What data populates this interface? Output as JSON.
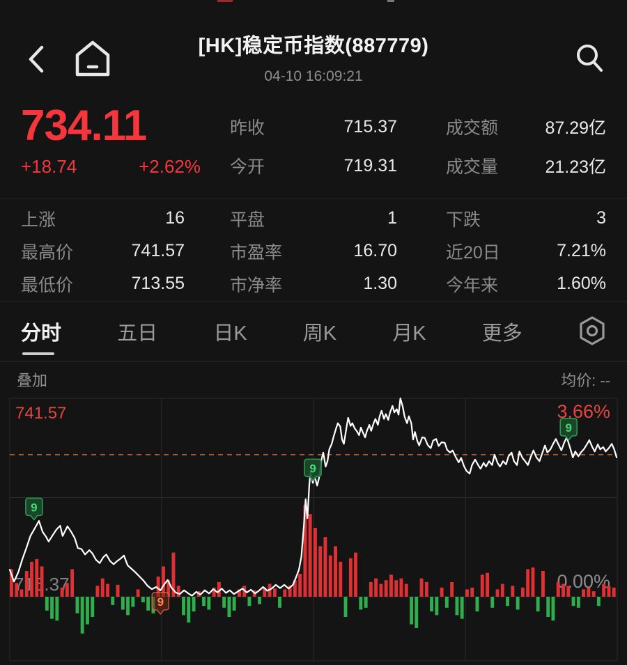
{
  "header": {
    "title": "[HK]稳定币指数(887779)",
    "timestamp": "04-10 16:09:21"
  },
  "quote": {
    "price": "734.11",
    "change": "+18.74",
    "change_pct": "+2.62%"
  },
  "summary": [
    {
      "label": "昨收",
      "value": "715.37"
    },
    {
      "label": "成交额",
      "value": "87.29亿"
    },
    {
      "label": "今开",
      "value": "719.31"
    },
    {
      "label": "成交量",
      "value": "21.23亿"
    }
  ],
  "stats": [
    {
      "label": "上涨",
      "value": "16"
    },
    {
      "label": "平盘",
      "value": "1"
    },
    {
      "label": "下跌",
      "value": "3"
    },
    {
      "label": "最高价",
      "value": "741.57"
    },
    {
      "label": "市盈率",
      "value": "16.70"
    },
    {
      "label": "近20日",
      "value": "7.21%"
    },
    {
      "label": "最低价",
      "value": "713.55"
    },
    {
      "label": "市净率",
      "value": "1.30"
    },
    {
      "label": "今年来",
      "value": "1.60%"
    }
  ],
  "tabs": [
    "分时",
    "五日",
    "日K",
    "周K",
    "月K",
    "更多"
  ],
  "overlay": {
    "overlay_label": "叠加",
    "avg_label": "均价: --"
  },
  "colors": {
    "up_red": "#f5363c",
    "bar_red": "#df3134",
    "bar_green": "#2fae4e",
    "dashed_line": "#b56b3c",
    "grid": "#2a2a2a",
    "line": "#ffffff"
  },
  "chart_data": {
    "type": "line",
    "title": "分时 (intraday) price line with up/down volume bars",
    "labels": {
      "price_high": "741.57",
      "price_low": "715.37",
      "pct_high": "3.66%",
      "pct_low": "0.00%"
    },
    "y_axis": {
      "price_high": 741.57,
      "price_low": 715.37,
      "prev_close": 715.37,
      "pct_high": 3.66,
      "pct_low": 0.0
    },
    "last_price": 734.11,
    "last_pct": 2.62,
    "line_pct": [
      [
        0.0,
        0.5
      ],
      [
        0.007,
        0.28
      ],
      [
        0.014,
        0.45
      ],
      [
        0.021,
        0.7
      ],
      [
        0.028,
        0.92
      ],
      [
        0.034,
        1.12
      ],
      [
        0.041,
        1.26
      ],
      [
        0.048,
        1.4
      ],
      [
        0.054,
        1.2
      ],
      [
        0.06,
        1.1
      ],
      [
        0.064,
        1.02
      ],
      [
        0.071,
        1.14
      ],
      [
        0.077,
        1.24
      ],
      [
        0.083,
        1.31
      ],
      [
        0.087,
        1.12
      ],
      [
        0.095,
        1.3
      ],
      [
        0.101,
        1.2
      ],
      [
        0.107,
        1.08
      ],
      [
        0.112,
        0.9
      ],
      [
        0.118,
        0.88
      ],
      [
        0.124,
        0.78
      ],
      [
        0.131,
        0.86
      ],
      [
        0.136,
        0.8
      ],
      [
        0.142,
        0.68
      ],
      [
        0.148,
        0.62
      ],
      [
        0.154,
        0.73
      ],
      [
        0.159,
        0.78
      ],
      [
        0.165,
        0.66
      ],
      [
        0.171,
        0.6
      ],
      [
        0.177,
        0.66
      ],
      [
        0.182,
        0.7
      ],
      [
        0.188,
        0.76
      ],
      [
        0.194,
        0.58
      ],
      [
        0.2,
        0.52
      ],
      [
        0.206,
        0.46
      ],
      [
        0.213,
        0.38
      ],
      [
        0.22,
        0.3
      ],
      [
        0.227,
        0.2
      ],
      [
        0.234,
        0.14
      ],
      [
        0.241,
        0.18
      ],
      [
        0.248,
        0.12
      ],
      [
        0.255,
        0.24
      ],
      [
        0.26,
        0.31
      ],
      [
        0.266,
        0.17
      ],
      [
        0.273,
        0.08
      ],
      [
        0.28,
        0.05
      ],
      [
        0.287,
        0.12
      ],
      [
        0.294,
        0.06
      ],
      [
        0.3,
        0.02
      ],
      [
        0.307,
        0.09
      ],
      [
        0.314,
        0.04
      ],
      [
        0.321,
        0.12
      ],
      [
        0.328,
        0.06
      ],
      [
        0.335,
        0.14
      ],
      [
        0.342,
        0.08
      ],
      [
        0.349,
        0.15
      ],
      [
        0.356,
        0.07
      ],
      [
        0.362,
        0.12
      ],
      [
        0.369,
        0.05
      ],
      [
        0.376,
        0.1
      ],
      [
        0.383,
        0.15
      ],
      [
        0.39,
        0.08
      ],
      [
        0.397,
        0.13
      ],
      [
        0.404,
        0.06
      ],
      [
        0.411,
        0.12
      ],
      [
        0.417,
        0.18
      ],
      [
        0.424,
        0.11
      ],
      [
        0.431,
        0.15
      ],
      [
        0.438,
        0.22
      ],
      [
        0.445,
        0.16
      ],
      [
        0.452,
        0.22
      ],
      [
        0.459,
        0.15
      ],
      [
        0.466,
        0.22
      ],
      [
        0.471,
        0.35
      ],
      [
        0.476,
        0.5
      ],
      [
        0.48,
        0.74
      ],
      [
        0.484,
        1.28
      ],
      [
        0.487,
        1.8
      ],
      [
        0.49,
        1.45
      ],
      [
        0.493,
        2.05
      ],
      [
        0.495,
        2.3
      ],
      [
        0.499,
        2.1
      ],
      [
        0.502,
        2.22
      ],
      [
        0.506,
        2.05
      ],
      [
        0.509,
        2.18
      ],
      [
        0.513,
        2.52
      ],
      [
        0.516,
        2.66
      ],
      [
        0.52,
        2.4
      ],
      [
        0.523,
        2.5
      ],
      [
        0.526,
        2.72
      ],
      [
        0.53,
        2.82
      ],
      [
        0.533,
        2.95
      ],
      [
        0.537,
        3.1
      ],
      [
        0.54,
        3.2
      ],
      [
        0.544,
        3.14
      ],
      [
        0.547,
        2.9
      ],
      [
        0.55,
        2.82
      ],
      [
        0.554,
        3.1
      ],
      [
        0.557,
        3.3
      ],
      [
        0.561,
        3.15
      ],
      [
        0.564,
        3.2
      ],
      [
        0.568,
        3.1
      ],
      [
        0.571,
        3.06
      ],
      [
        0.575,
        2.98
      ],
      [
        0.578,
        3.12
      ],
      [
        0.581,
        3.04
      ],
      [
        0.585,
        2.94
      ],
      [
        0.588,
        3.06
      ],
      [
        0.592,
        3.17
      ],
      [
        0.595,
        3.06
      ],
      [
        0.599,
        3.2
      ],
      [
        0.602,
        3.28
      ],
      [
        0.606,
        3.17
      ],
      [
        0.609,
        3.33
      ],
      [
        0.612,
        3.43
      ],
      [
        0.616,
        3.28
      ],
      [
        0.619,
        3.37
      ],
      [
        0.623,
        3.26
      ],
      [
        0.626,
        3.4
      ],
      [
        0.63,
        3.52
      ],
      [
        0.633,
        3.4
      ],
      [
        0.637,
        3.46
      ],
      [
        0.64,
        3.36
      ],
      [
        0.643,
        3.66
      ],
      [
        0.647,
        3.5
      ],
      [
        0.65,
        3.32
      ],
      [
        0.654,
        3.2
      ],
      [
        0.657,
        3.33
      ],
      [
        0.661,
        3.2
      ],
      [
        0.664,
        2.9
      ],
      [
        0.667,
        3.04
      ],
      [
        0.671,
        2.87
      ],
      [
        0.674,
        2.79
      ],
      [
        0.679,
        2.94
      ],
      [
        0.683,
        2.93
      ],
      [
        0.688,
        2.8
      ],
      [
        0.693,
        2.74
      ],
      [
        0.697,
        2.88
      ],
      [
        0.702,
        2.91
      ],
      [
        0.706,
        2.78
      ],
      [
        0.711,
        2.85
      ],
      [
        0.716,
        2.84
      ],
      [
        0.72,
        2.71
      ],
      [
        0.725,
        2.66
      ],
      [
        0.729,
        2.7
      ],
      [
        0.734,
        2.58
      ],
      [
        0.739,
        2.48
      ],
      [
        0.743,
        2.56
      ],
      [
        0.748,
        2.4
      ],
      [
        0.752,
        2.32
      ],
      [
        0.757,
        2.27
      ],
      [
        0.761,
        2.43
      ],
      [
        0.766,
        2.53
      ],
      [
        0.771,
        2.43
      ],
      [
        0.775,
        2.36
      ],
      [
        0.78,
        2.47
      ],
      [
        0.784,
        2.4
      ],
      [
        0.789,
        2.5
      ],
      [
        0.794,
        2.43
      ],
      [
        0.798,
        2.62
      ],
      [
        0.803,
        2.47
      ],
      [
        0.807,
        2.4
      ],
      [
        0.812,
        2.5
      ],
      [
        0.817,
        2.44
      ],
      [
        0.821,
        2.59
      ],
      [
        0.826,
        2.66
      ],
      [
        0.83,
        2.5
      ],
      [
        0.835,
        2.43
      ],
      [
        0.839,
        2.68
      ],
      [
        0.844,
        2.56
      ],
      [
        0.849,
        2.49
      ],
      [
        0.853,
        2.43
      ],
      [
        0.858,
        2.59
      ],
      [
        0.862,
        2.7
      ],
      [
        0.867,
        2.57
      ],
      [
        0.872,
        2.5
      ],
      [
        0.876,
        2.63
      ],
      [
        0.881,
        2.79
      ],
      [
        0.885,
        2.66
      ],
      [
        0.89,
        2.72
      ],
      [
        0.894,
        2.81
      ],
      [
        0.899,
        2.91
      ],
      [
        0.904,
        2.79
      ],
      [
        0.908,
        2.7
      ],
      [
        0.913,
        2.85
      ],
      [
        0.917,
        2.94
      ],
      [
        0.922,
        2.76
      ],
      [
        0.927,
        2.57
      ],
      [
        0.931,
        2.68
      ],
      [
        0.936,
        2.59
      ],
      [
        0.94,
        2.66
      ],
      [
        0.945,
        2.72
      ],
      [
        0.95,
        2.81
      ],
      [
        0.954,
        2.89
      ],
      [
        0.959,
        2.76
      ],
      [
        0.963,
        2.68
      ],
      [
        0.968,
        2.81
      ],
      [
        0.972,
        2.72
      ],
      [
        0.977,
        2.76
      ],
      [
        0.981,
        2.68
      ],
      [
        0.986,
        2.74
      ],
      [
        0.991,
        2.82
      ],
      [
        0.995,
        2.72
      ],
      [
        0.999,
        2.57
      ]
    ],
    "volume_bars": [
      30,
      15,
      8,
      28,
      38,
      41,
      33,
      -15,
      -24,
      -26,
      10,
      15,
      30,
      -18,
      -40,
      -30,
      -22,
      12,
      20,
      14,
      -9,
      13,
      -14,
      -20,
      -11,
      8,
      -6,
      -15,
      -18,
      22,
      33,
      18,
      48,
      12,
      -20,
      -28,
      -16,
      6,
      -10,
      -14,
      10,
      16,
      -12,
      -22,
      -15,
      8,
      12,
      -10,
      7,
      -8,
      10,
      14,
      9,
      -12,
      8,
      12,
      18,
      25,
      100,
      90,
      75,
      55,
      65,
      45,
      55,
      38,
      -22,
      42,
      48,
      -14,
      -12,
      16,
      20,
      14,
      18,
      24,
      18,
      20,
      14,
      -30,
      -34,
      20,
      16,
      -16,
      -20,
      10,
      -12,
      16,
      -20,
      -24,
      8,
      10,
      -16,
      24,
      26,
      -12,
      8,
      14,
      -10,
      12,
      -14,
      10,
      30,
      32,
      -16,
      28,
      -22,
      -26,
      16,
      14,
      12,
      -10,
      -12,
      8,
      10,
      6,
      -10,
      14,
      12,
      10
    ],
    "markers": [
      {
        "f": 0.04,
        "pct": 1.42,
        "style": "green",
        "label": "9"
      },
      {
        "f": 0.499,
        "pct": 2.14,
        "style": "green",
        "label": "9"
      },
      {
        "f": 0.92,
        "pct": 2.89,
        "style": "green",
        "label": "9"
      },
      {
        "f": 0.248,
        "pct": -0.32,
        "style": "red",
        "label": "9"
      }
    ]
  }
}
